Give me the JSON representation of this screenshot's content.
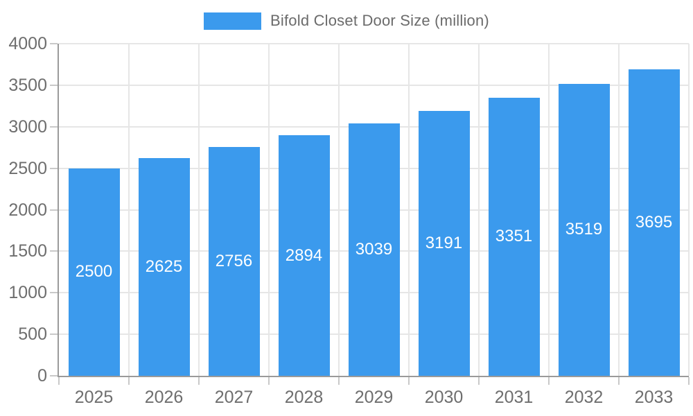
{
  "chart_data": {
    "type": "bar",
    "title": "",
    "legend_label": "Bifold Closet Door Size (million)",
    "legend_position": "top-center",
    "categories": [
      "2025",
      "2026",
      "2027",
      "2028",
      "2029",
      "2030",
      "2031",
      "2032",
      "2033"
    ],
    "values": [
      2500,
      2625,
      2756,
      2894,
      3039,
      3191,
      3351,
      3519,
      3695
    ],
    "xlabel": "",
    "ylabel": "",
    "ylim": [
      0,
      4000
    ],
    "yticks": [
      0,
      500,
      1000,
      1500,
      2000,
      2500,
      3000,
      3500,
      4000
    ],
    "grid": true,
    "colors": {
      "bar": "#3B9AED",
      "bar_label_text": "#FFFFFF",
      "grid_line": "#E6E6E6",
      "axis_line": "#9A9A9A",
      "tick_mark": "#C9C9C9",
      "axis_text": "#6E6E6E",
      "legend_text": "#6B6B6B",
      "background": "#FFFFFF"
    }
  }
}
